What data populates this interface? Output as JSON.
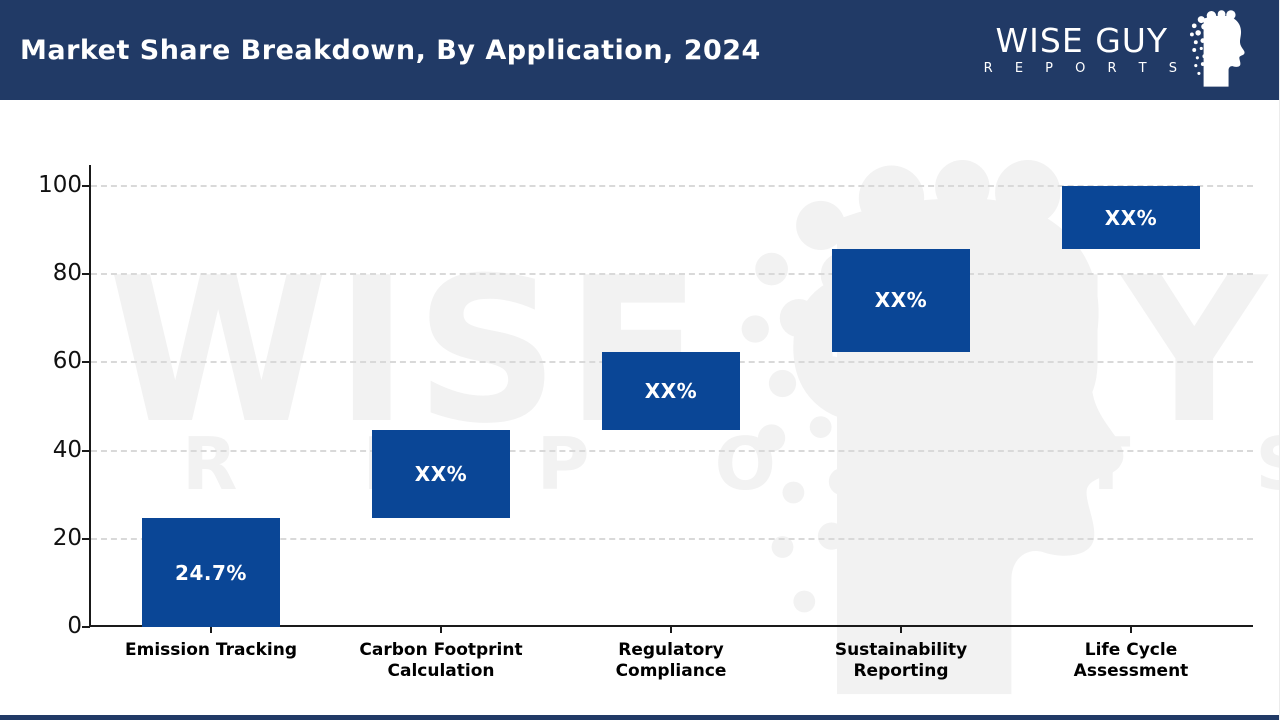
{
  "header": {
    "title": "Market Share Breakdown, By Application, 2024",
    "logo": {
      "line1": "WISE GUY",
      "line2": "R E P O R T S"
    }
  },
  "watermark": {
    "line1": "WISE GUY",
    "line2": "R E P O R T S"
  },
  "chart_data": {
    "type": "bar",
    "subtype": "floating-waterfall-bars",
    "title": "Market Share Breakdown, By Application, 2024",
    "categories": [
      "Emission Tracking",
      "Carbon Footprint Calculation",
      "Regulatory Compliance",
      "Sustainability Reporting",
      "Life Cycle Assessment"
    ],
    "segments": [
      {
        "category": "Emission Tracking",
        "start": 0,
        "end": 24.7,
        "label": "24.7%"
      },
      {
        "category": "Carbon Footprint Calculation",
        "start": 24.7,
        "end": 44.6,
        "label": "XX%"
      },
      {
        "category": "Regulatory Compliance",
        "start": 44.6,
        "end": 62.4,
        "label": "XX%"
      },
      {
        "category": "Sustainability Reporting",
        "start": 62.4,
        "end": 85.7,
        "label": "XX%"
      },
      {
        "category": "Life Cycle Assessment",
        "start": 85.7,
        "end": 100,
        "label": "XX%"
      }
    ],
    "ylabel": "",
    "xlabel": "",
    "ylim": [
      0,
      105
    ],
    "yticks": [
      0,
      20,
      40,
      60,
      80,
      100
    ],
    "grid": "horizontal dashed, on y-ticks 20-100",
    "legend": "none",
    "bar_color": "#0a4696",
    "bar_label_color": "#ffffff"
  },
  "colors": {
    "header_bg": "#213a66",
    "footer_bg": "#213a66",
    "bar": "#0a4696",
    "grid": "#d9d9d9",
    "axis": "#1a1a1a",
    "watermark": "#f2f2f2",
    "title_text": "#ffffff"
  }
}
